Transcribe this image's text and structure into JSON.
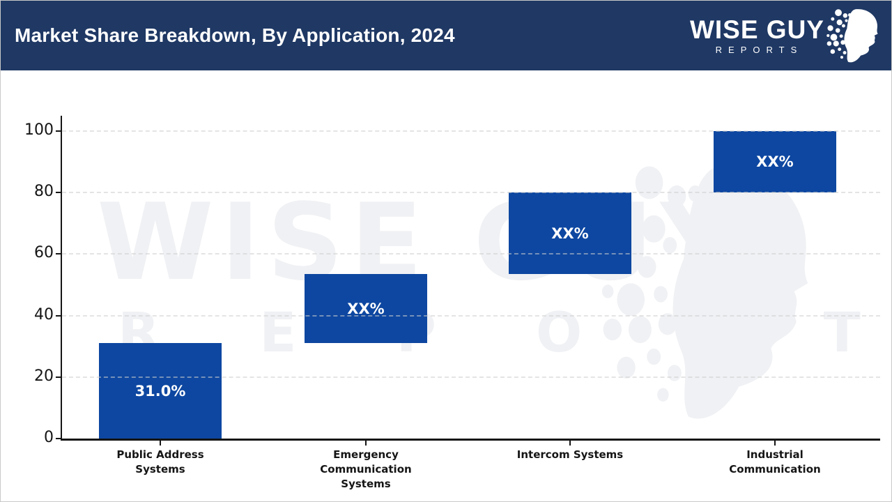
{
  "header": {
    "title": "Market Share Breakdown, By Application, 2024",
    "bg_color": "#1f3864",
    "logo": {
      "line1": "WISE GUY",
      "line2": "REPORTS"
    }
  },
  "watermark": {
    "line1": "WISE GUY",
    "line2": "R E P O R T S"
  },
  "chart_data": {
    "type": "bar",
    "subtype": "waterfall",
    "title": "Market Share Breakdown, By Application, 2024",
    "categories": [
      "Public Address\nSystems",
      "Emergency\nCommunication\nSystems",
      "Intercom Systems",
      "Industrial\nCommunication"
    ],
    "segments": [
      {
        "start": 0,
        "end": 31,
        "label": "31.0%"
      },
      {
        "start": 31,
        "end": 53.5,
        "label": "XX%"
      },
      {
        "start": 53.5,
        "end": 80,
        "label": "XX%"
      },
      {
        "start": 80,
        "end": 100,
        "label": "XX%"
      }
    ],
    "ylim": [
      0,
      100
    ],
    "yticks": [
      0,
      20,
      40,
      60,
      80,
      100
    ],
    "grid": true,
    "grid_style": "dashed",
    "legend": "none",
    "bar_color": "#0d47a1",
    "bar_label_color": "#ffffff"
  }
}
